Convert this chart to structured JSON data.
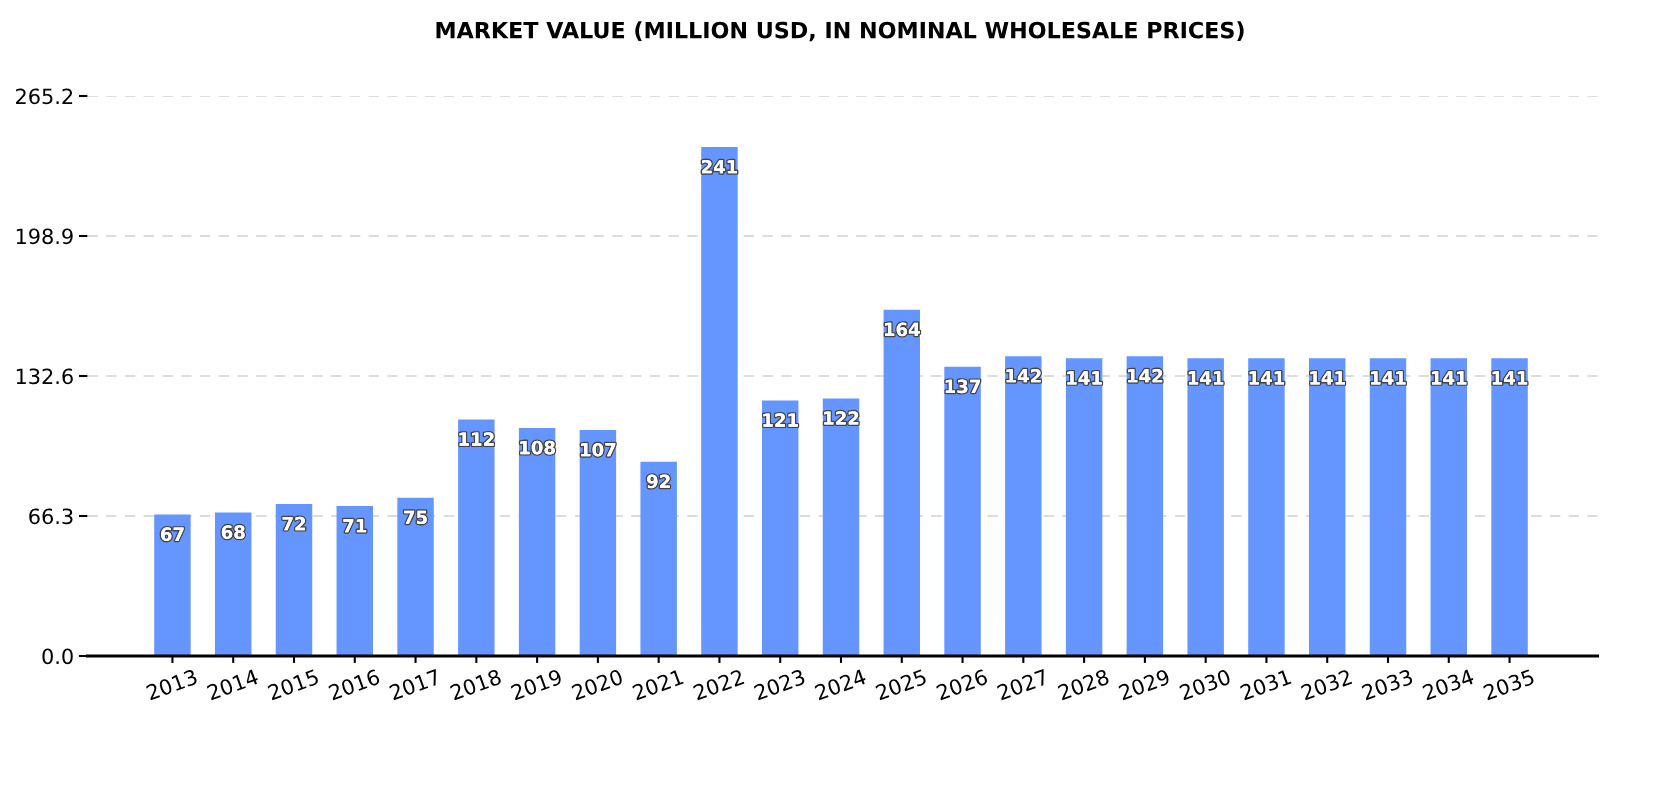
{
  "chart_data": {
    "type": "bar",
    "title": "MARKET VALUE (MILLION USD, IN NOMINAL WHOLESALE PRICES)",
    "categories": [
      "2013",
      "2014",
      "2015",
      "2016",
      "2017",
      "2018",
      "2019",
      "2020",
      "2021",
      "2022",
      "2023",
      "2024",
      "2025",
      "2026",
      "2027",
      "2028",
      "2029",
      "2030",
      "2031",
      "2032",
      "2033",
      "2034",
      "2035"
    ],
    "values": [
      67,
      68,
      72,
      71,
      75,
      112,
      108,
      107,
      92,
      241,
      121,
      122,
      164,
      137,
      142,
      141,
      142,
      141,
      141,
      141,
      141,
      141,
      141
    ],
    "color": "#6596ff",
    "ylim": [
      0,
      265.2
    ],
    "yticks": [
      {
        "value": 0,
        "label": "0.0"
      },
      66.3,
      132.6,
      198.9,
      265.2
    ],
    "grid": "y",
    "data_labels": true
  }
}
